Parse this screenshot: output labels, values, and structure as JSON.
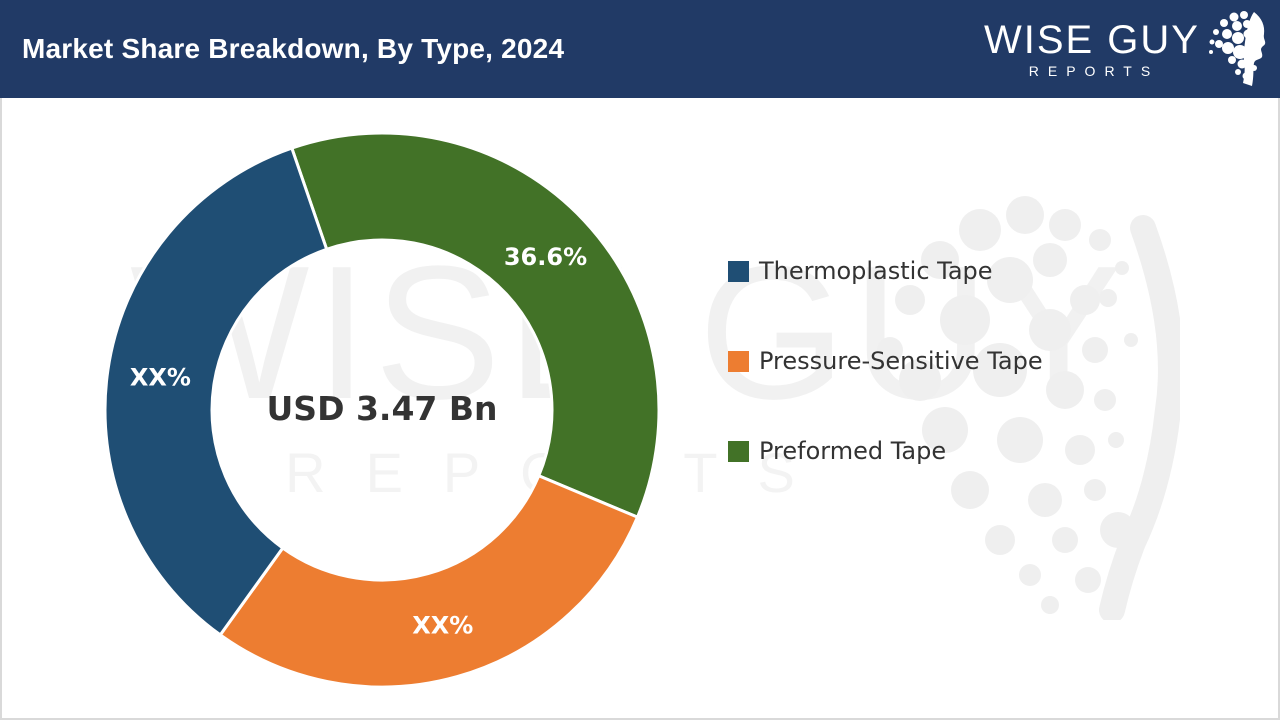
{
  "header": {
    "title": "Market Share Breakdown, By Type, 2024",
    "logo": {
      "line1": "WISE GUY",
      "line2": "REPORTS"
    }
  },
  "watermark": {
    "line1": "WISE GUY",
    "line2": "REPORTS"
  },
  "chart_data": {
    "type": "pie",
    "subtype": "donut",
    "title": "Market Share Breakdown, By Type, 2024",
    "center_label": "USD 3.47 Bn",
    "start_angle_deg": -19,
    "slices": [
      {
        "label": "Preformed Tape",
        "pct": 36.6,
        "display": "36.6%",
        "color": "#427227"
      },
      {
        "label": "Pressure-Sensitive Tape",
        "pct": 28.6,
        "display": "XX%",
        "color": "#ED7D31"
      },
      {
        "label": "Thermoplastic Tape",
        "pct": 34.8,
        "display": "XX%",
        "color": "#1F4E74"
      }
    ],
    "legend": [
      {
        "label": "Thermoplastic Tape",
        "color": "#1F4E74"
      },
      {
        "label": "Pressure-Sensitive Tape",
        "color": "#ED7D31"
      },
      {
        "label": "Preformed Tape",
        "color": "#427227"
      }
    ],
    "legend_position": "right"
  },
  "colors": {
    "header_bg": "#213A66",
    "text": "#333333",
    "watermark": "#F1F1F1",
    "border": "#D9D9D9"
  }
}
